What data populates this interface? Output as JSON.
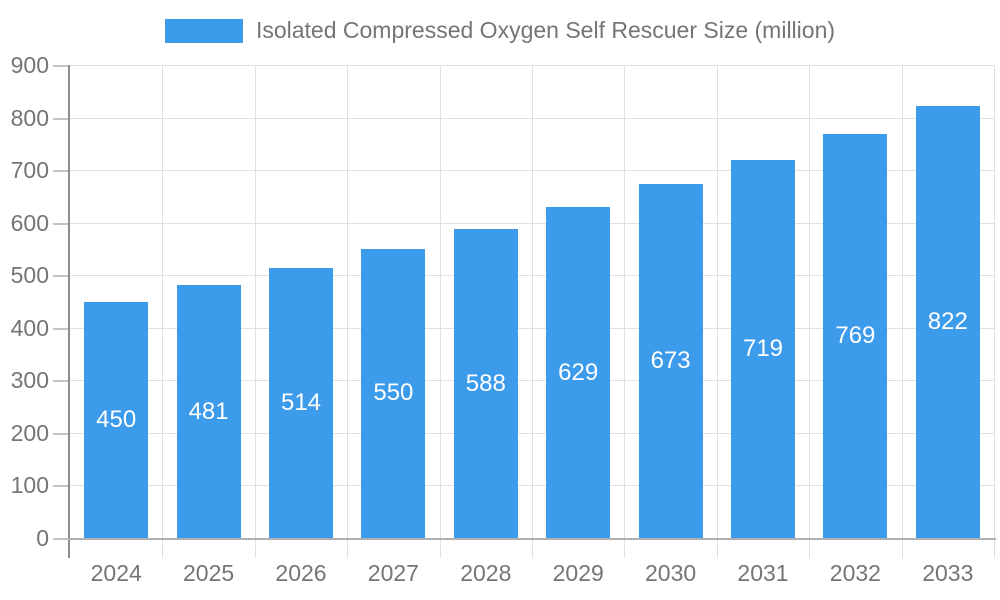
{
  "legend": {
    "label": "Isolated Compressed Oxygen Self Rescuer Size (million)"
  },
  "chart_data": {
    "type": "bar",
    "title": "Isolated Compressed Oxygen Self Rescuer Size (million)",
    "series_name": "Isolated Compressed Oxygen Self Rescuer Size (million)",
    "categories": [
      "2024",
      "2025",
      "2026",
      "2027",
      "2028",
      "2029",
      "2030",
      "2031",
      "2032",
      "2033"
    ],
    "values": [
      450,
      481,
      514,
      550,
      588,
      629,
      673,
      719,
      769,
      822
    ],
    "xlabel": "",
    "ylabel": "",
    "ylim": [
      0,
      900
    ],
    "ytick_step": 100,
    "yticks": [
      0,
      100,
      200,
      300,
      400,
      500,
      600,
      700,
      800,
      900
    ],
    "grid": true,
    "legend_position": "top",
    "bar_color": "#3C9BEB",
    "value_label_color": "#FFFFFF"
  },
  "colors": {
    "grid": "#E0E0E0",
    "y_axis": "#8D8D8D",
    "x_axis": "#B0B0B0",
    "tick": "#C4C4C4",
    "axis_text": "#757575",
    "background": "#FFFFFF"
  }
}
